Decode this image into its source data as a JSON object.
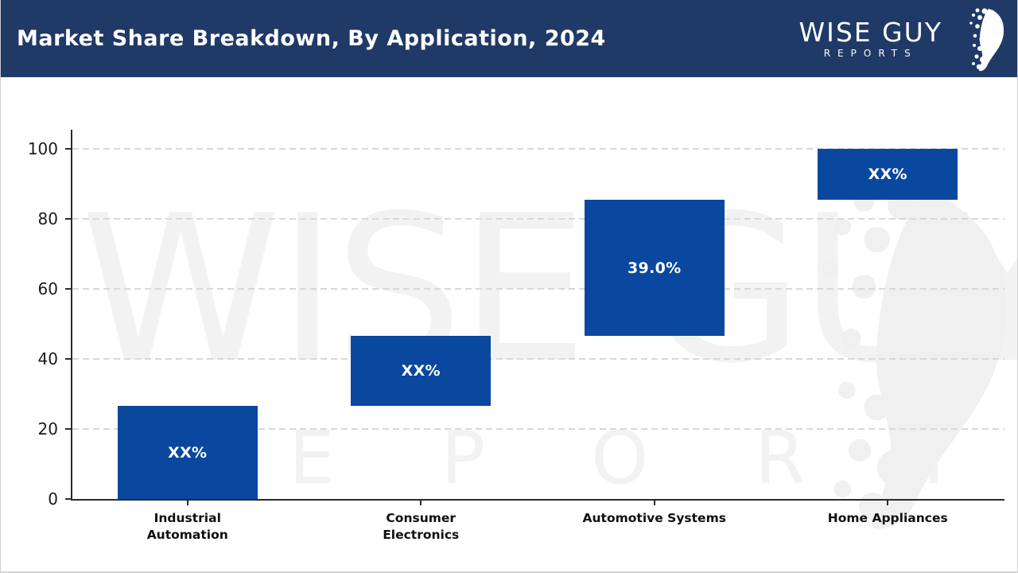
{
  "header": {
    "title": "Market Share Breakdown, By Application, 2024",
    "logo": {
      "line1": "WISE GUY",
      "line2": "REPORTS"
    }
  },
  "watermark": {
    "line1": "WISE GUY",
    "line2": "R E P O R T S"
  },
  "colors": {
    "header_bg": "#1f3a67",
    "bar": "#0a479f",
    "grid": "#d8d8d8",
    "axis": "#2b2b2b",
    "tick_text": "#1a1a1a",
    "bar_label_text": "#ffffff"
  },
  "chart_data": {
    "type": "bar",
    "subtype": "waterfall-floating-bars",
    "title": "Market Share Breakdown, By Application, 2024",
    "xlabel": "",
    "ylabel": "",
    "categories": [
      [
        "Industrial",
        "Automation"
      ],
      [
        "Consumer",
        "Electronics"
      ],
      [
        "Automotive Systems"
      ],
      [
        "Home Appliances"
      ]
    ],
    "segments": [
      {
        "category": "Industrial Automation",
        "start": 0,
        "end": 26.5,
        "value": 26.5,
        "label": "XX%"
      },
      {
        "category": "Consumer Electronics",
        "start": 26.5,
        "end": 46.5,
        "value": 20.0,
        "label": "XX%"
      },
      {
        "category": "Automotive Systems",
        "start": 46.5,
        "end": 85.5,
        "value": 39.0,
        "label": "39.0%"
      },
      {
        "category": "Home Appliances",
        "start": 85.5,
        "end": 100,
        "value": 14.5,
        "label": "XX%"
      }
    ],
    "yticks": [
      0,
      20,
      40,
      60,
      80,
      100
    ],
    "ylim": [
      0,
      105
    ],
    "grid": "horizontal-dashed",
    "legend": "none",
    "bar_color": "#0a479f"
  }
}
